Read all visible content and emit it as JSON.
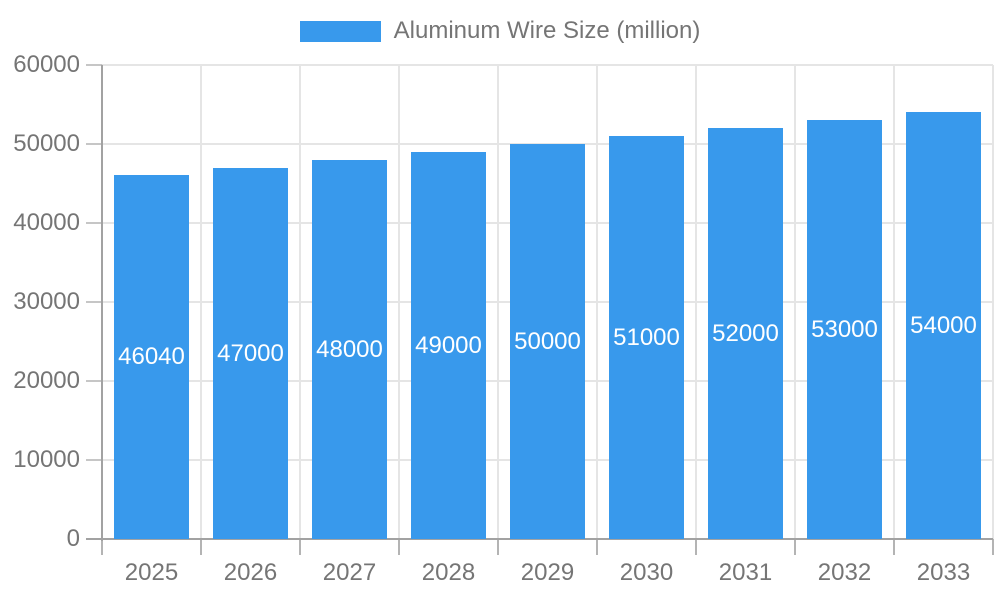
{
  "chart_data": {
    "type": "bar",
    "title": "",
    "categories": [
      "2025",
      "2026",
      "2027",
      "2028",
      "2029",
      "2030",
      "2031",
      "2032",
      "2033"
    ],
    "series": [
      {
        "name": "Aluminum Wire Size (million)",
        "values": [
          46040,
          47000,
          48000,
          49000,
          50000,
          51000,
          52000,
          53000,
          54000
        ]
      }
    ],
    "value_labels": [
      "46040",
      "47000",
      "48000",
      "49000",
      "50000",
      "51000",
      "52000",
      "53000",
      "54000"
    ],
    "y_tick_labels": [
      "0",
      "10000",
      "20000",
      "30000",
      "40000",
      "50000",
      "60000"
    ],
    "xlabel": "",
    "ylabel": "",
    "ylim": [
      0,
      60000
    ],
    "ytick_step": 10000,
    "grid": true,
    "legend_position": "top",
    "value_label_position": "inside-center",
    "colors": {
      "bar": "#3899EC",
      "value_label": "#FFFFFF",
      "tick_label": "#757575",
      "gridline": "#E5E5E5",
      "axis_line": "#A2A2A2",
      "background": "#FFFFFF"
    }
  }
}
